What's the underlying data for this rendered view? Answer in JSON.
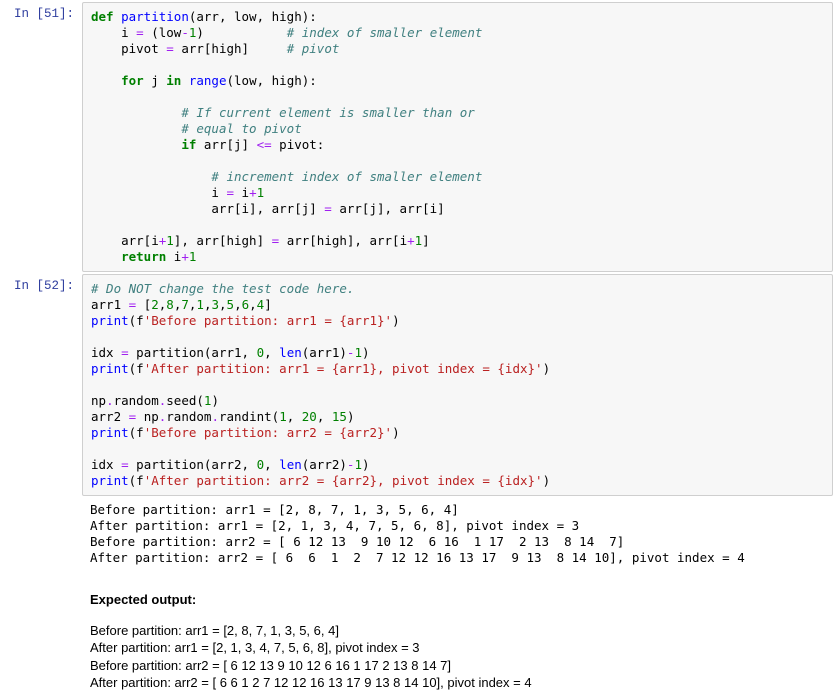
{
  "cell51": {
    "prompt": "In [51]:",
    "tokens": [
      {
        "t": "def ",
        "c": "kw"
      },
      {
        "t": "partition",
        "c": "fn"
      },
      {
        "t": "(arr, low, high):\n",
        "c": "id"
      },
      {
        "t": "    i ",
        "c": "id"
      },
      {
        "t": "=",
        "c": "op"
      },
      {
        "t": " (low",
        "c": "id"
      },
      {
        "t": "-",
        "c": "op"
      },
      {
        "t": "1",
        "c": "num"
      },
      {
        "t": ")           ",
        "c": "id"
      },
      {
        "t": "# index of smaller element\n",
        "c": "cm"
      },
      {
        "t": "    pivot ",
        "c": "id"
      },
      {
        "t": "=",
        "c": "op"
      },
      {
        "t": " arr[high]     ",
        "c": "id"
      },
      {
        "t": "# pivot\n",
        "c": "cm"
      },
      {
        "t": "\n",
        "c": "id"
      },
      {
        "t": "    ",
        "c": "id"
      },
      {
        "t": "for",
        "c": "kw"
      },
      {
        "t": " j ",
        "c": "id"
      },
      {
        "t": "in",
        "c": "kw"
      },
      {
        "t": " ",
        "c": "id"
      },
      {
        "t": "range",
        "c": "fn"
      },
      {
        "t": "(low, high):\n",
        "c": "id"
      },
      {
        "t": "\n",
        "c": "id"
      },
      {
        "t": "            ",
        "c": "id"
      },
      {
        "t": "# If current element is smaller than or\n",
        "c": "cm"
      },
      {
        "t": "            ",
        "c": "id"
      },
      {
        "t": "# equal to pivot\n",
        "c": "cm"
      },
      {
        "t": "            ",
        "c": "id"
      },
      {
        "t": "if",
        "c": "kw"
      },
      {
        "t": " arr[j] ",
        "c": "id"
      },
      {
        "t": "<=",
        "c": "op"
      },
      {
        "t": " pivot:\n",
        "c": "id"
      },
      {
        "t": "\n",
        "c": "id"
      },
      {
        "t": "                ",
        "c": "id"
      },
      {
        "t": "# increment index of smaller element\n",
        "c": "cm"
      },
      {
        "t": "                i ",
        "c": "id"
      },
      {
        "t": "=",
        "c": "op"
      },
      {
        "t": " i",
        "c": "id"
      },
      {
        "t": "+",
        "c": "op"
      },
      {
        "t": "1",
        "c": "num"
      },
      {
        "t": "\n",
        "c": "id"
      },
      {
        "t": "                arr[i], arr[j] ",
        "c": "id"
      },
      {
        "t": "=",
        "c": "op"
      },
      {
        "t": " arr[j], arr[i]\n",
        "c": "id"
      },
      {
        "t": "\n",
        "c": "id"
      },
      {
        "t": "    arr[i",
        "c": "id"
      },
      {
        "t": "+",
        "c": "op"
      },
      {
        "t": "1",
        "c": "num"
      },
      {
        "t": "], arr[high] ",
        "c": "id"
      },
      {
        "t": "=",
        "c": "op"
      },
      {
        "t": " arr[high], arr[i",
        "c": "id"
      },
      {
        "t": "+",
        "c": "op"
      },
      {
        "t": "1",
        "c": "num"
      },
      {
        "t": "]\n",
        "c": "id"
      },
      {
        "t": "    ",
        "c": "id"
      },
      {
        "t": "return",
        "c": "kw"
      },
      {
        "t": " i",
        "c": "id"
      },
      {
        "t": "+",
        "c": "op"
      },
      {
        "t": "1",
        "c": "num"
      }
    ]
  },
  "cell52": {
    "prompt": "In [52]:",
    "tokens": [
      {
        "t": "# Do NOT change the test code here.\n",
        "c": "cm"
      },
      {
        "t": "arr1 ",
        "c": "id"
      },
      {
        "t": "=",
        "c": "op"
      },
      {
        "t": " [",
        "c": "id"
      },
      {
        "t": "2",
        "c": "num"
      },
      {
        "t": ",",
        "c": "id"
      },
      {
        "t": "8",
        "c": "num"
      },
      {
        "t": ",",
        "c": "id"
      },
      {
        "t": "7",
        "c": "num"
      },
      {
        "t": ",",
        "c": "id"
      },
      {
        "t": "1",
        "c": "num"
      },
      {
        "t": ",",
        "c": "id"
      },
      {
        "t": "3",
        "c": "num"
      },
      {
        "t": ",",
        "c": "id"
      },
      {
        "t": "5",
        "c": "num"
      },
      {
        "t": ",",
        "c": "id"
      },
      {
        "t": "6",
        "c": "num"
      },
      {
        "t": ",",
        "c": "id"
      },
      {
        "t": "4",
        "c": "num"
      },
      {
        "t": "]\n",
        "c": "id"
      },
      {
        "t": "print",
        "c": "fn"
      },
      {
        "t": "(f",
        "c": "id"
      },
      {
        "t": "'Before partition: arr1 = {arr1}'",
        "c": "str"
      },
      {
        "t": ")\n",
        "c": "id"
      },
      {
        "t": "\n",
        "c": "id"
      },
      {
        "t": "idx ",
        "c": "id"
      },
      {
        "t": "=",
        "c": "op"
      },
      {
        "t": " partition(arr1, ",
        "c": "id"
      },
      {
        "t": "0",
        "c": "num"
      },
      {
        "t": ", ",
        "c": "id"
      },
      {
        "t": "len",
        "c": "fn"
      },
      {
        "t": "(arr1)",
        "c": "id"
      },
      {
        "t": "-",
        "c": "op"
      },
      {
        "t": "1",
        "c": "num"
      },
      {
        "t": ")\n",
        "c": "id"
      },
      {
        "t": "print",
        "c": "fn"
      },
      {
        "t": "(f",
        "c": "id"
      },
      {
        "t": "'After partition: arr1 = {arr1}, pivot index = {idx}'",
        "c": "str"
      },
      {
        "t": ")\n",
        "c": "id"
      },
      {
        "t": "\n",
        "c": "id"
      },
      {
        "t": "np",
        "c": "id"
      },
      {
        "t": ".",
        "c": "op"
      },
      {
        "t": "random",
        "c": "id"
      },
      {
        "t": ".",
        "c": "op"
      },
      {
        "t": "seed(",
        "c": "id"
      },
      {
        "t": "1",
        "c": "num"
      },
      {
        "t": ")\n",
        "c": "id"
      },
      {
        "t": "arr2 ",
        "c": "id"
      },
      {
        "t": "=",
        "c": "op"
      },
      {
        "t": " np",
        "c": "id"
      },
      {
        "t": ".",
        "c": "op"
      },
      {
        "t": "random",
        "c": "id"
      },
      {
        "t": ".",
        "c": "op"
      },
      {
        "t": "randint(",
        "c": "id"
      },
      {
        "t": "1",
        "c": "num"
      },
      {
        "t": ", ",
        "c": "id"
      },
      {
        "t": "20",
        "c": "num"
      },
      {
        "t": ", ",
        "c": "id"
      },
      {
        "t": "15",
        "c": "num"
      },
      {
        "t": ")\n",
        "c": "id"
      },
      {
        "t": "print",
        "c": "fn"
      },
      {
        "t": "(f",
        "c": "id"
      },
      {
        "t": "'Before partition: arr2 = {arr2}'",
        "c": "str"
      },
      {
        "t": ")\n",
        "c": "id"
      },
      {
        "t": "\n",
        "c": "id"
      },
      {
        "t": "idx ",
        "c": "id"
      },
      {
        "t": "=",
        "c": "op"
      },
      {
        "t": " partition(arr2, ",
        "c": "id"
      },
      {
        "t": "0",
        "c": "num"
      },
      {
        "t": ", ",
        "c": "id"
      },
      {
        "t": "len",
        "c": "fn"
      },
      {
        "t": "(arr2)",
        "c": "id"
      },
      {
        "t": "-",
        "c": "op"
      },
      {
        "t": "1",
        "c": "num"
      },
      {
        "t": ")\n",
        "c": "id"
      },
      {
        "t": "print",
        "c": "fn"
      },
      {
        "t": "(f",
        "c": "id"
      },
      {
        "t": "'After partition: arr2 = {arr2}, pivot index = {idx}'",
        "c": "str"
      },
      {
        "t": ")",
        "c": "id"
      }
    ],
    "output": "Before partition: arr1 = [2, 8, 7, 1, 3, 5, 6, 4]\nAfter partition: arr1 = [2, 1, 3, 4, 7, 5, 6, 8], pivot index = 3\nBefore partition: arr2 = [ 6 12 13  9 10 12  6 16  1 17  2 13  8 14  7]\nAfter partition: arr2 = [ 6  6  1  2  7 12 12 16 13 17  9 13  8 14 10], pivot index = 4"
  },
  "markdown": {
    "heading": "Expected output:",
    "lines": [
      "Before partition: arr1 = [2, 8, 7, 1, 3, 5, 6, 4]",
      "After partition: arr1 = [2, 1, 3, 4, 7, 5, 6, 8], pivot index = 3",
      "Before partition: arr2 = [ 6 12 13 9 10 12 6 16 1 17 2 13 8 14 7]",
      "After partition: arr2 = [ 6 6 1 2 7 12 12 16 13 17 9 13 8 14 10], pivot index = 4"
    ]
  }
}
